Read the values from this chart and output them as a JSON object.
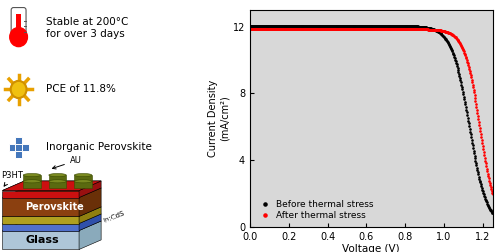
{
  "left_panel": {
    "bullet1_text": "Stable at 200°C\nfor over 3 days",
    "bullet2_text": "PCE of 11.8%",
    "bullet3_text": "Inorganic Perovskite"
  },
  "right_panel": {
    "xlabel": "Voltage (V)",
    "ylabel": "Current Density\n(mA/cm²)",
    "xlim": [
      0.0,
      1.25
    ],
    "ylim": [
      0,
      13
    ],
    "yticks": [
      0,
      4,
      8,
      12
    ],
    "xticks": [
      0.0,
      0.2,
      0.4,
      0.6,
      0.8,
      1.0,
      1.2
    ],
    "legend_before": "Before thermal stress",
    "legend_after": "After thermal stress",
    "Jsc_before": 12.05,
    "Jsc_after": 11.85,
    "Voc_before": 1.13,
    "Voc_after": 1.185,
    "steep_before": 22,
    "steep_after": 25
  },
  "colors": {
    "glass_face": "#aec6d8",
    "glass_top": "#c8dce8",
    "glass_side": "#8aaabb",
    "fto_face": "#5070cc",
    "fto_top": "#7090ee",
    "fto_side": "#3050aa",
    "incds_face": "#b0a020",
    "incds_top": "#d0c040",
    "incds_side": "#908010",
    "perov_face": "#8B4010",
    "perov_top": "#a05828",
    "perov_side": "#6a3008",
    "p3ht_face": "#cc1010",
    "p3ht_top": "#dd3030",
    "p3ht_side": "#991010",
    "au_color": "#5a6a10",
    "au_edge": "#3a4a00"
  }
}
